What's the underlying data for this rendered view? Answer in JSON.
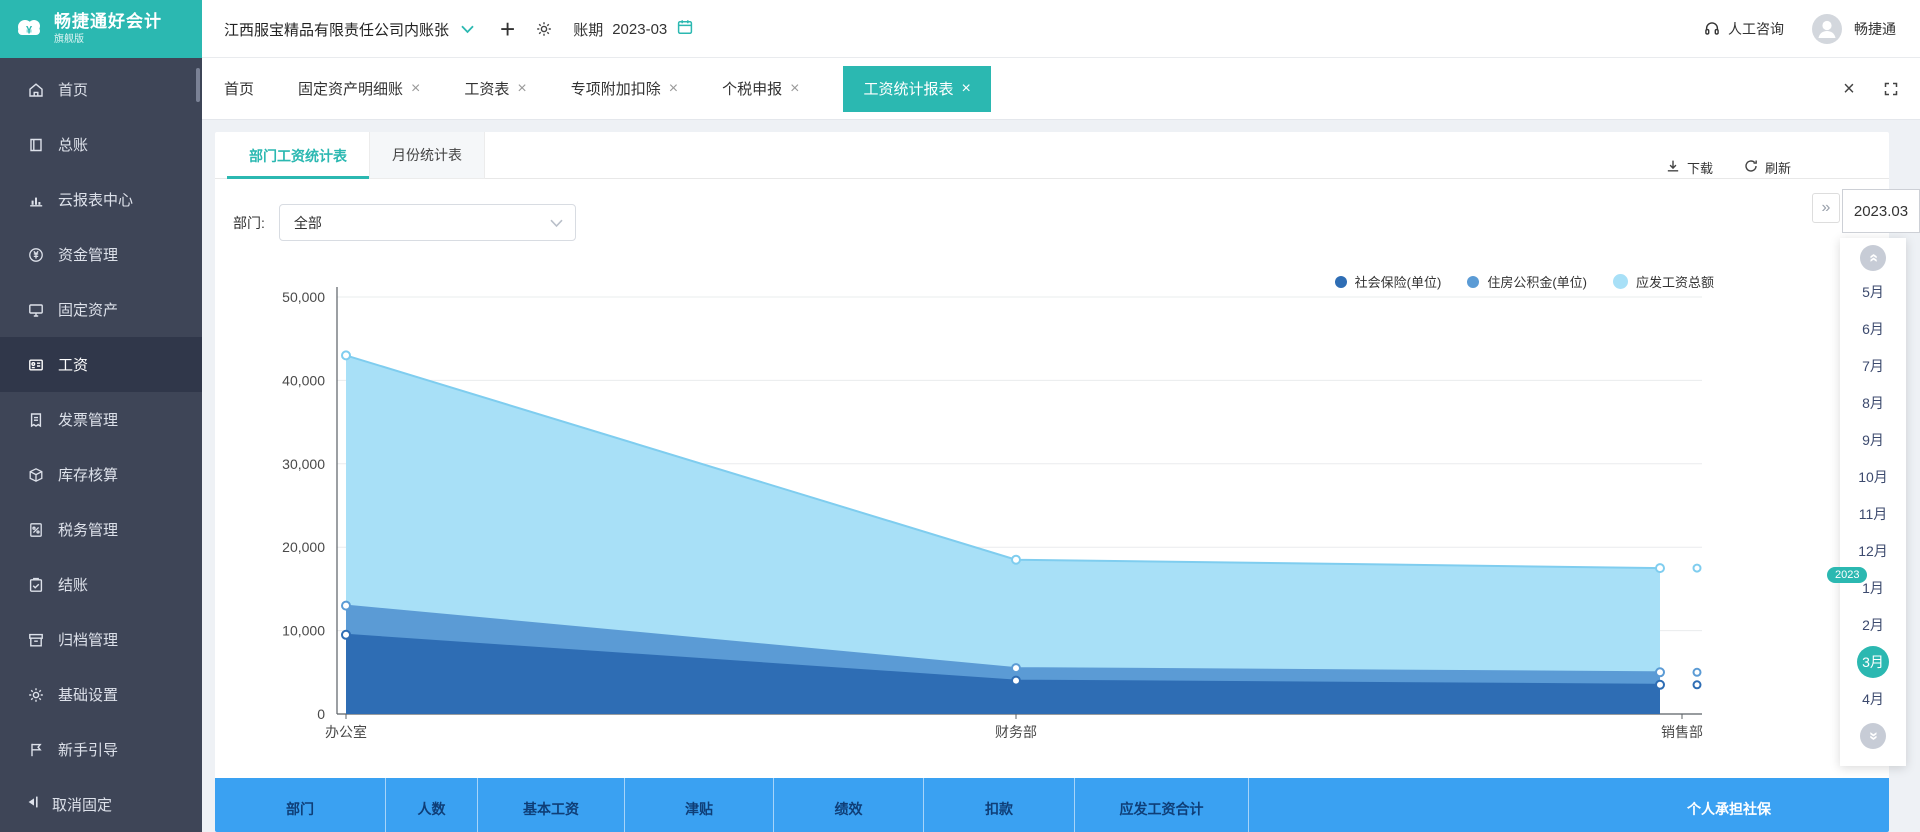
{
  "colors": {
    "accent_teal": "#2bb8b1",
    "sidebar_bg": "#3e4557",
    "table_header_bg": "#3aa1f2"
  },
  "icons": {
    "add": "+",
    "tab_close": "×",
    "close_all": "×",
    "panel_collapse": "»",
    "scroll_chevron": "«"
  },
  "topbar": {
    "app_name": "畅捷通好会计",
    "edition": "旗舰版",
    "company": "江西服宝精品有限责任公司内账张",
    "period_label": "账期",
    "period_value": "2023-03",
    "support_label": "人工咨询",
    "user_name": "畅捷通"
  },
  "sidebar": {
    "items": [
      {
        "label": "首页"
      },
      {
        "label": "总账"
      },
      {
        "label": "云报表中心"
      },
      {
        "label": "资金管理"
      },
      {
        "label": "固定资产"
      },
      {
        "label": "工资"
      },
      {
        "label": "发票管理"
      },
      {
        "label": "库存核算"
      },
      {
        "label": "税务管理"
      },
      {
        "label": "结账"
      },
      {
        "label": "归档管理"
      },
      {
        "label": "基础设置"
      },
      {
        "label": "新手引导"
      }
    ],
    "active_item": "工资",
    "pin_label": "取消固定"
  },
  "tabs": {
    "items": [
      {
        "label": "首页",
        "closable": false
      },
      {
        "label": "固定资产明细账",
        "closable": true
      },
      {
        "label": "工资表",
        "closable": true
      },
      {
        "label": "专项附加扣除",
        "closable": true
      },
      {
        "label": "个税申报",
        "closable": true
      },
      {
        "label": "工资统计报表",
        "closable": true
      }
    ],
    "active_tab": "工资统计报表"
  },
  "report": {
    "subtabs": [
      {
        "label": "部门工资统计表"
      },
      {
        "label": "月份统计表"
      }
    ],
    "active_subtab": "部门工资统计表",
    "download_label": "下载",
    "refresh_label": "刷新",
    "filter_label": "部门:",
    "filter_value": "全部"
  },
  "chart_data": {
    "type": "area",
    "categories": [
      "办公室",
      "财务部",
      "销售部"
    ],
    "series": [
      {
        "name": "社会保险(单位)",
        "color": "#2e6db4",
        "values": [
          9500,
          4000,
          3500
        ]
      },
      {
        "name": "住房公积金(单位)",
        "color": "#5b9bd5",
        "values": [
          13000,
          5500,
          5000
        ]
      },
      {
        "name": "应发工资总额",
        "color": "#a8e0f7",
        "line_color": "#7fcdef",
        "values": [
          43000,
          18500,
          17500
        ]
      }
    ],
    "ylim": [
      0,
      50000
    ],
    "yticks": [
      0,
      10000,
      20000,
      30000,
      40000,
      50000
    ],
    "grid": true,
    "legend_position": "top-right"
  },
  "period_panel": {
    "current": "2023.03",
    "year_badge": "2023",
    "months": [
      "5月",
      "6月",
      "7月",
      "8月",
      "9月",
      "10月",
      "11月",
      "12月",
      "1月",
      "2月",
      "3月",
      "4月"
    ],
    "active_month": "3月"
  },
  "table": {
    "columns": [
      "部门",
      "人数",
      "基本工资",
      "津贴",
      "绩效",
      "扣款",
      "应发工资合计"
    ],
    "right_column": "个人承担社保"
  }
}
